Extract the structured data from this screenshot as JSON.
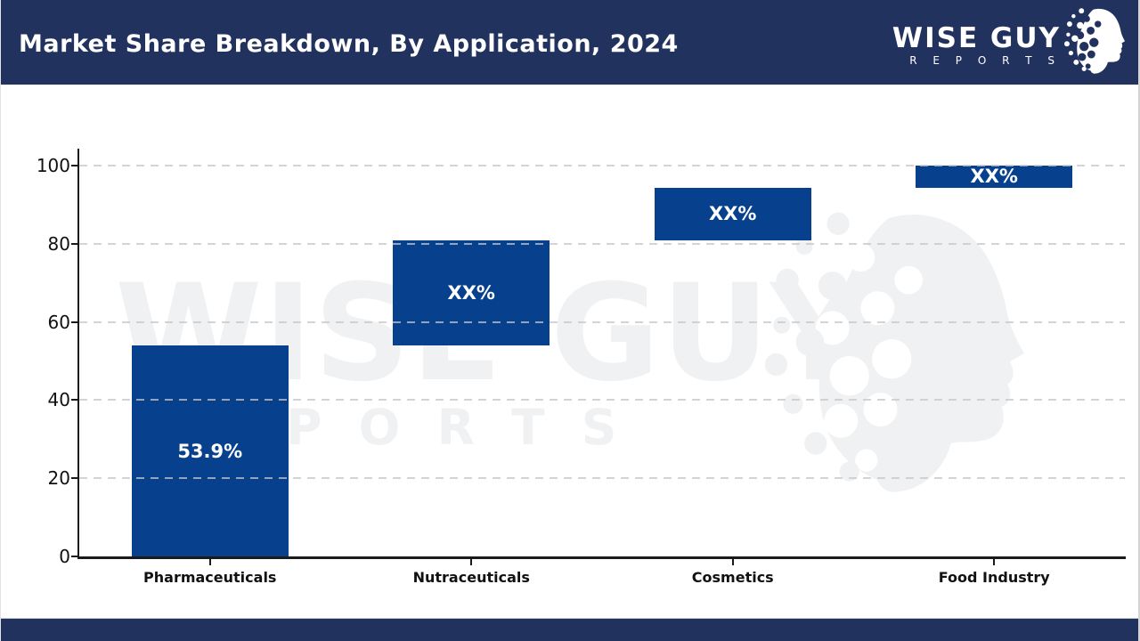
{
  "header": {
    "title": "Market Share Breakdown, By Application, 2024",
    "logo": {
      "name": "WISE GUY",
      "sub": "R E P O R T S"
    }
  },
  "watermark": {
    "line1": "WISE GUY",
    "line2": "R E P O R T S"
  },
  "colors": {
    "header_bg": "#22325f",
    "footer_bg": "#22325f",
    "bar": "#07418d",
    "grid": "#d9d9d9",
    "axis": "#1a1a1a",
    "watermark": "#f0f1f3"
  },
  "chart_data": {
    "type": "bar",
    "subtype": "waterfall",
    "title": "Market Share Breakdown, By Application, 2024",
    "categories": [
      "Pharmaceuticals",
      "Nutraceuticals",
      "Cosmetics",
      "Food Industry"
    ],
    "segments": [
      {
        "category": "Pharmaceuticals",
        "start": 0,
        "end": 53.9,
        "label": "53.9%"
      },
      {
        "category": "Nutraceuticals",
        "start": 53.9,
        "end": 80.8,
        "label": "XX%"
      },
      {
        "category": "Cosmetics",
        "start": 80.8,
        "end": 94.4,
        "label": "XX%"
      },
      {
        "category": "Food Industry",
        "start": 94.4,
        "end": 100,
        "label": "XX%"
      }
    ],
    "xlabel": "",
    "ylabel": "",
    "ylim": [
      0,
      100
    ],
    "yticks": [
      0,
      20,
      40,
      60,
      80,
      100
    ],
    "grid": "horizontal-dashed",
    "legend": "none"
  }
}
